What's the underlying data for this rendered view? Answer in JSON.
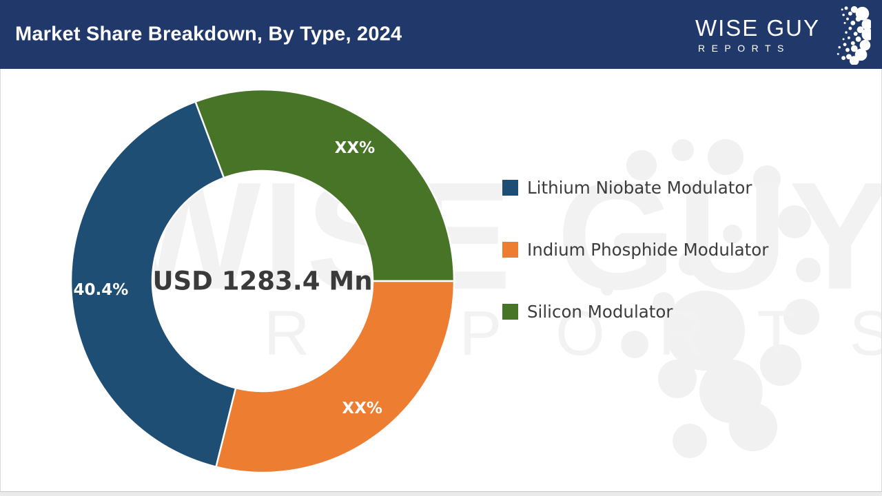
{
  "header": {
    "title": "Market Share Breakdown, By Type, 2024",
    "logo": {
      "line1": "WISE GUY",
      "line2": "REPORTS"
    }
  },
  "watermark": {
    "line1": "WISE GUY",
    "line2": "REPORTS"
  },
  "chart_data": {
    "type": "pie",
    "subtype": "donut",
    "title": "Market Share Breakdown, By Type, 2024",
    "center_label": "USD 1283.4 Mn",
    "units": "percent market share",
    "start_angle_deg": 0,
    "direction": "ccw",
    "legend_position": "right",
    "slices": [
      {
        "label": "Silicon Modulator",
        "display": "XX%",
        "value": 30.7,
        "color": "#477427"
      },
      {
        "label": "Lithium Niobate Modulator",
        "display": "40.4%",
        "value": 40.4,
        "color": "#1f4e74"
      },
      {
        "label": "Indium Phosphide Modulator",
        "display": "XX%",
        "value": 28.9,
        "color": "#ed7d31"
      }
    ]
  },
  "legend": {
    "items": [
      {
        "label": "Lithium Niobate Modulator",
        "color": "#1f4e74"
      },
      {
        "label": "Indium Phosphide Modulator",
        "color": "#ed7d31"
      },
      {
        "label": "Silicon Modulator",
        "color": "#477427"
      }
    ]
  },
  "colors": {
    "header_bg": "#21396a",
    "text_dark": "#3a3a3a",
    "watermark": "#f2f2f2"
  }
}
